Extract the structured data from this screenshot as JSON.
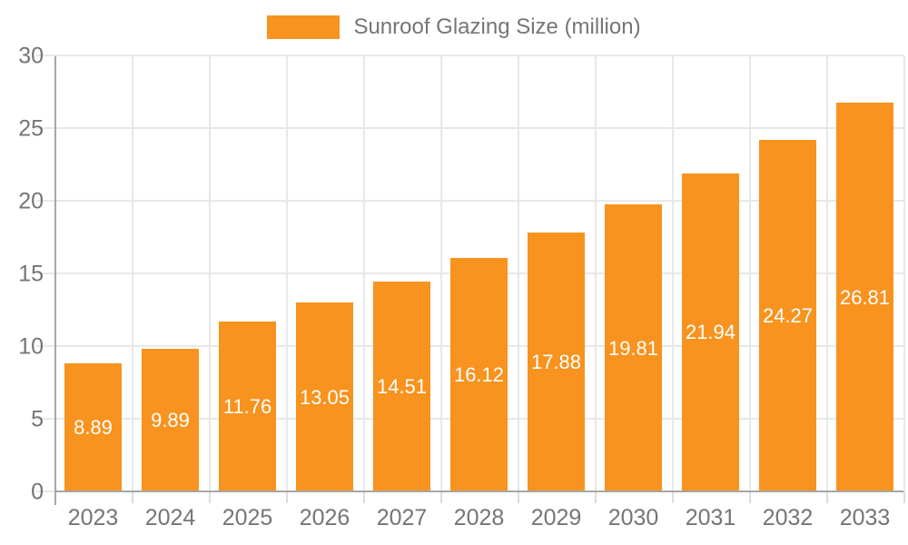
{
  "legend": {
    "label": "Sunroof Glazing Size (million)"
  },
  "colors": {
    "bar": "#f7931e",
    "grid": "#e8e8e8",
    "axis": "#a6a6a6",
    "text": "#757575",
    "bar_label": "#ffffff"
  },
  "chart_data": {
    "type": "bar",
    "title": "Sunroof Glazing Size (million)",
    "categories": [
      "2023",
      "2024",
      "2025",
      "2026",
      "2027",
      "2028",
      "2029",
      "2030",
      "2031",
      "2032",
      "2033"
    ],
    "values": [
      8.89,
      9.89,
      11.76,
      13.05,
      14.51,
      16.12,
      17.88,
      19.81,
      21.94,
      24.27,
      26.81
    ],
    "value_labels": [
      "8.89",
      "9.89",
      "11.76",
      "13.05",
      "14.51",
      "16.12",
      "17.88",
      "19.81",
      "21.94",
      "24.27",
      "26.81"
    ],
    "xlabel": "",
    "ylabel": "",
    "ylim": [
      0,
      30
    ],
    "yticks": [
      0,
      5,
      10,
      15,
      20,
      25,
      30
    ],
    "grid": "both",
    "legend_position": "top-center",
    "bar_color": "#f7931e",
    "bar_label_position": "inside-center"
  }
}
